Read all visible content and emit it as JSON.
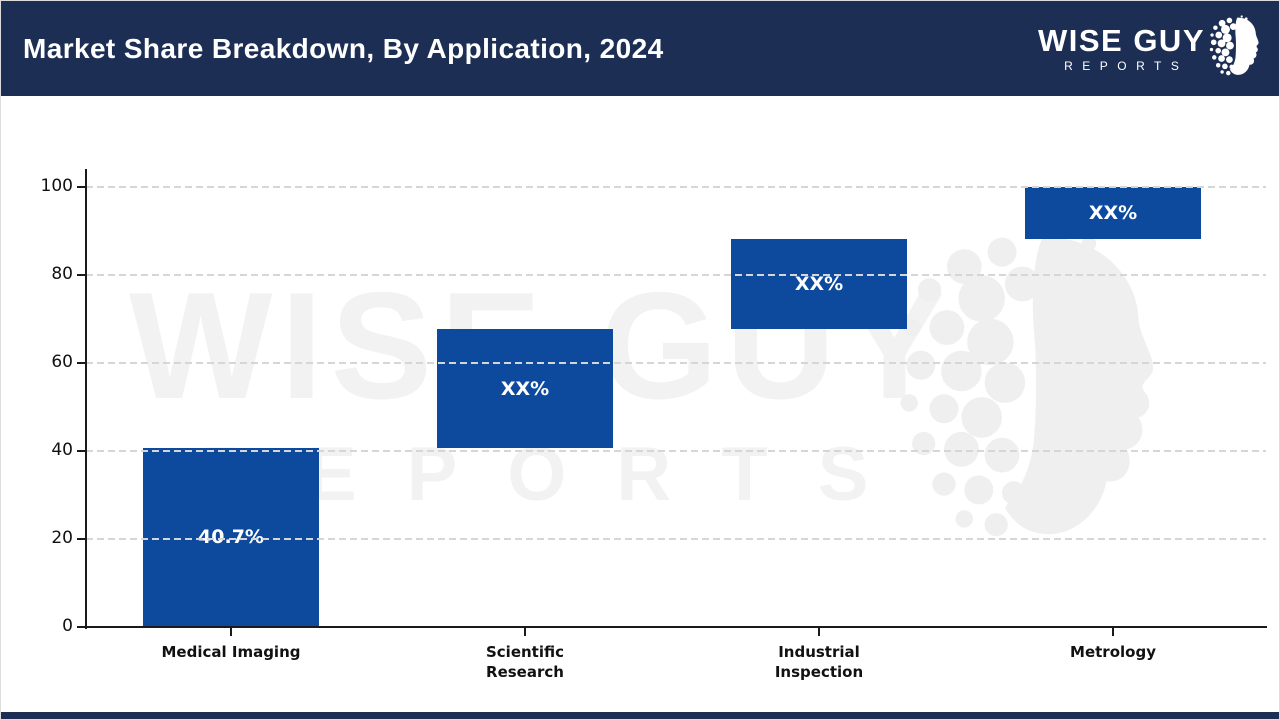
{
  "header": {
    "title": "Market Share Breakdown, By Application, 2024",
    "logo": {
      "name_line": "WISE GUY",
      "sub_line": "REPORTS"
    }
  },
  "watermark": {
    "line1": "WISE GUY",
    "line2": "REPORTS"
  },
  "colors": {
    "header_bg": "#1d2e55",
    "bar": "#0d4a9e",
    "grid": "#d6d6d6",
    "axis": "#1a1a1a",
    "bar_label": "#ffffff",
    "title_text": "#ffffff",
    "watermark": "#f2f2f3",
    "footer_bg": "#1d2e55"
  },
  "chart_data": {
    "type": "bar",
    "variant": "waterfall",
    "title": "Market Share Breakdown, By Application, 2024",
    "categories": [
      "Medical Imaging",
      "Scientific\nResearch",
      "Industrial\nInspection",
      "Metrology"
    ],
    "segments": [
      {
        "category": "Medical Imaging",
        "start": 0,
        "end": 40.7,
        "value": 40.7,
        "label": "40.7%"
      },
      {
        "category": "Scientific Research",
        "start": 40.7,
        "end": 67.7,
        "value": 27.0,
        "label": "XX%"
      },
      {
        "category": "Industrial Inspection",
        "start": 67.7,
        "end": 88.2,
        "value": 20.5,
        "label": "XX%"
      },
      {
        "category": "Metrology",
        "start": 88.2,
        "end": 100,
        "value": 11.8,
        "label": "XX%"
      }
    ],
    "xlabel": "",
    "ylabel": "",
    "ylim": [
      0,
      104
    ],
    "yticks": [
      0,
      20,
      40,
      60,
      80,
      100
    ],
    "grid": "horizontal-dashed",
    "legend": "none",
    "bar_color": "#0d4a9e"
  }
}
